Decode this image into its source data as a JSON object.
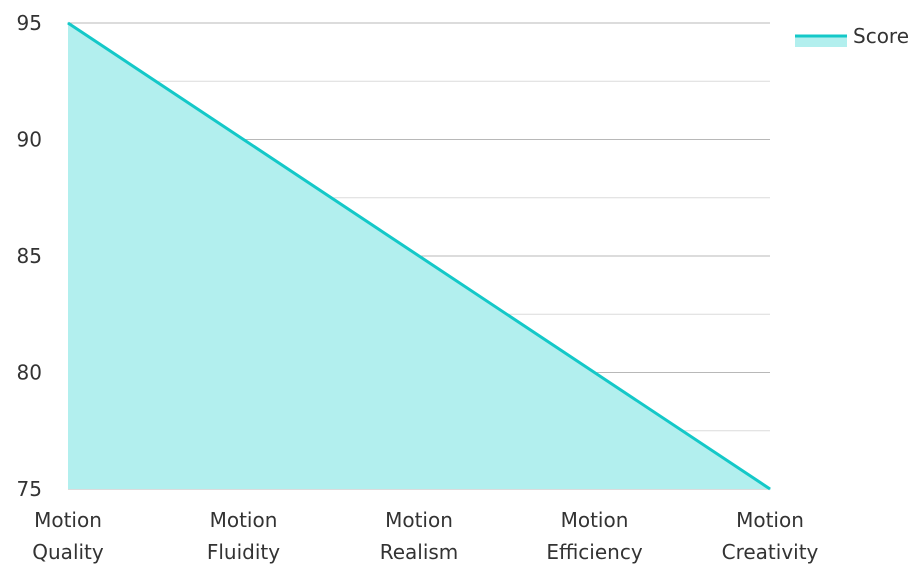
{
  "chart_data": {
    "type": "area",
    "categories": [
      [
        "Motion",
        "Quality"
      ],
      [
        "Motion",
        "Fluidity"
      ],
      [
        "Motion",
        "Realism"
      ],
      [
        "Motion",
        "Efficiency"
      ],
      [
        "Motion",
        "Creativity"
      ]
    ],
    "series": [
      {
        "name": "Score",
        "values": [
          95,
          90,
          85,
          80,
          75
        ],
        "color": "#14c8c8",
        "fill": "#b2efee"
      }
    ],
    "ylim": [
      75,
      95
    ],
    "yticks": [
      "75",
      "80",
      "85",
      "90",
      "95"
    ],
    "grid": true,
    "legend": "top-right"
  }
}
